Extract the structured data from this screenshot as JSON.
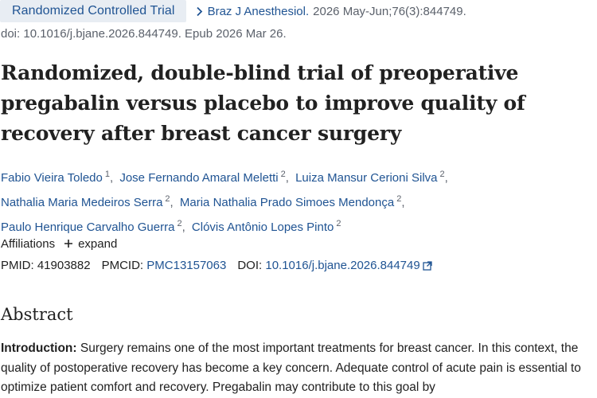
{
  "meta": {
    "publication_type": "Randomized Controlled Trial",
    "journal": "Braz J Anesthesiol.",
    "citation": "2026 May-Jun;76(3):844749.",
    "doi_line": "doi: 10.1016/j.bjane.2026.844749. Epub 2026 Mar 26."
  },
  "title": "Randomized, double-blind trial of preoperative pregabalin versus placebo to improve quality of recovery after breast cancer surgery",
  "authors": [
    {
      "name": "Fabio Vieira Toledo",
      "affil": "1"
    },
    {
      "name": "Jose Fernando Amaral Meletti",
      "affil": "2"
    },
    {
      "name": "Luiza Mansur Cerioni Silva",
      "affil": "2"
    },
    {
      "name": "Nathalia Maria Medeiros Serra",
      "affil": "2"
    },
    {
      "name": "Maria Nathalia Prado Simoes Mendonça",
      "affil": "2"
    },
    {
      "name": "Paulo Henrique Carvalho Guerra",
      "affil": "2"
    },
    {
      "name": "Clóvis Antônio Lopes Pinto",
      "affil": "2"
    }
  ],
  "affiliations": {
    "label": "Affiliations",
    "toggle": "expand"
  },
  "identifiers": {
    "pmid_label": "PMID:",
    "pmid": "41903882",
    "pmcid_label": "PMCID:",
    "pmcid": "PMC13157063",
    "doi_label": "DOI:",
    "doi": "10.1016/j.bjane.2026.844749"
  },
  "abstract": {
    "heading": "Abstract",
    "intro_label": "Introduction:",
    "intro_text": " Surgery remains one of the most important treatments for breast cancer. In this context, the quality of postoperative recovery has become a key concern. Adequate control of acute pain is essential to optimize patient comfort and recovery. Pregabalin may contribute to this goal by"
  },
  "colors": {
    "link": "#205493",
    "badge_bg": "#e8edf3",
    "muted": "#5b616b",
    "text": "#212121"
  },
  "icons": {
    "citation": "chevron-right-icon",
    "affiliations": "plus-icon",
    "doi_link": "external-link-icon"
  }
}
